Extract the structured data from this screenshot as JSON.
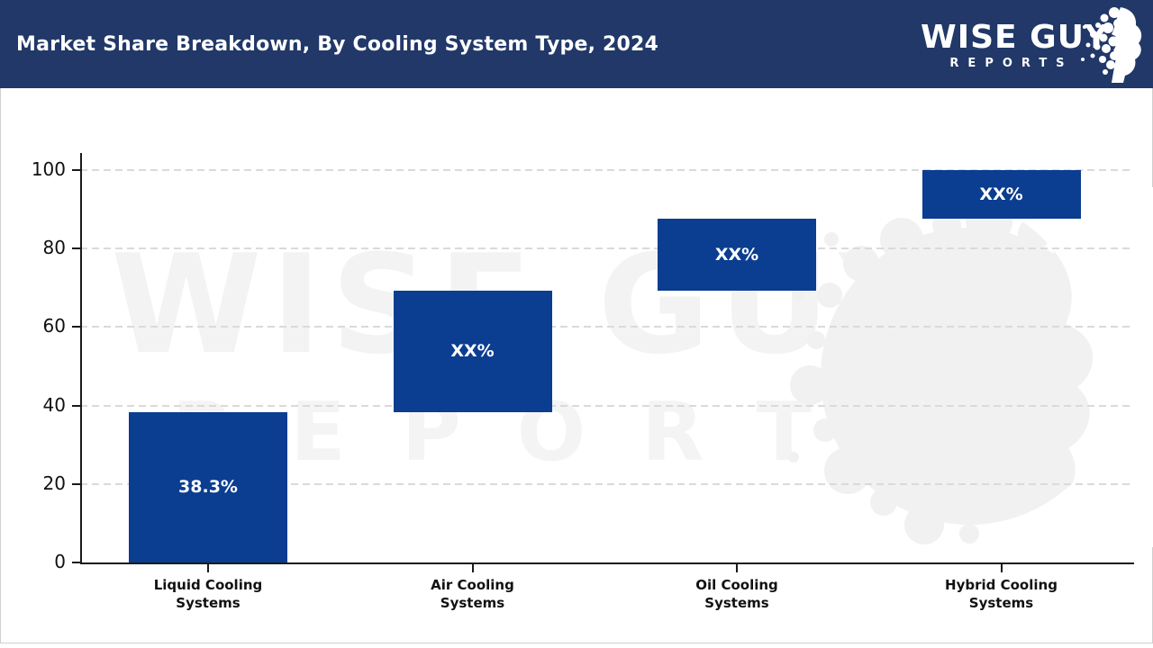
{
  "header": {
    "title": "Market Share Breakdown, By Cooling System Type, 2024",
    "logo": {
      "name": "WISE GUY",
      "sub": "REPORTS"
    }
  },
  "watermark": {
    "line1": "WISE GUY",
    "line2": "REPORTS"
  },
  "colors": {
    "header_bg": "#213868",
    "bar": "#0b3d91",
    "gridline": "#dadada",
    "axis": "#1a1a1a",
    "panel_border": "#cfcfcf",
    "watermark": "#f3f3f3",
    "bar_label": "#ffffff",
    "title_text": "#ffffff"
  },
  "chart_data": {
    "type": "bar",
    "subtype": "waterfall",
    "title": "Market Share Breakdown, By Cooling System Type, 2024",
    "categories": [
      "Liquid Cooling\nSystems",
      "Air Cooling\nSystems",
      "Oil Cooling\nSystems",
      "Hybrid Cooling\nSystems"
    ],
    "bars": [
      {
        "start": 0,
        "end": 38.3,
        "label": "38.3%"
      },
      {
        "start": 38.3,
        "end": 69.3,
        "label": "XX%"
      },
      {
        "start": 69.3,
        "end": 87.6,
        "label": "XX%"
      },
      {
        "start": 87.6,
        "end": 100,
        "label": "XX%"
      }
    ],
    "y_axis": {
      "ticks": [
        0,
        20,
        40,
        60,
        80,
        100
      ],
      "range": [
        0,
        104
      ]
    },
    "x_axis_label": "",
    "y_axis_label": "",
    "legend": "none",
    "grid": "horizontal-dashed",
    "bar_color": "#0b3d91"
  }
}
